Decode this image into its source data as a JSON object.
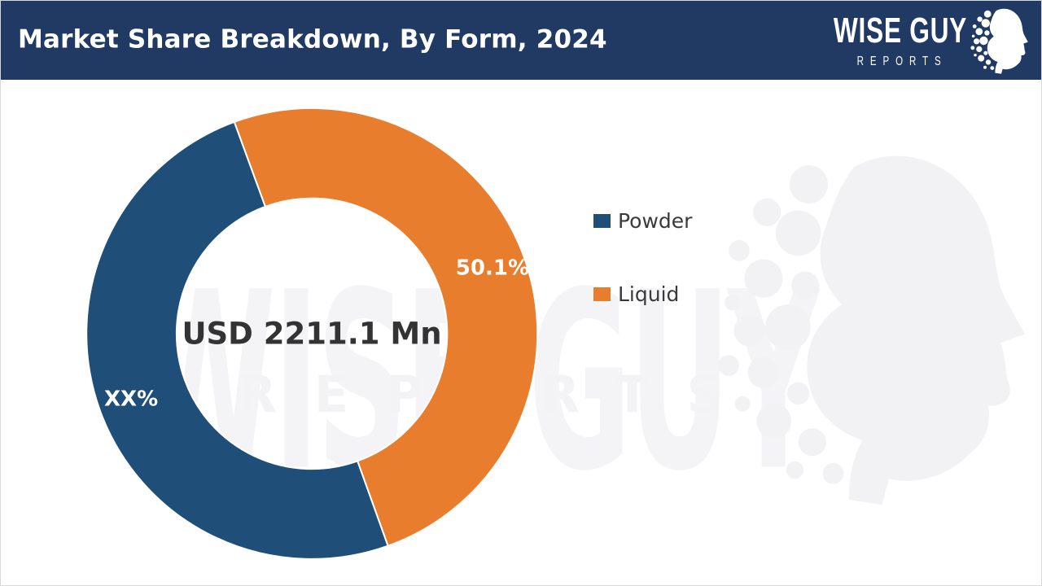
{
  "header": {
    "title": "Market Share Breakdown, By Form, 2024",
    "logo": {
      "line1": "WISE GUY",
      "line2": "REPORTS"
    }
  },
  "watermark": {
    "line1": "WISE GUY",
    "line2": "REPORTS"
  },
  "chart_data": {
    "type": "pie",
    "subtype": "donut",
    "title": "Market Share Breakdown, By Form, 2024",
    "center_label": "USD 2211.1 Mn",
    "start_angle_deg": -20.1,
    "inner_radius_ratio": 0.6,
    "label_position_ratio": 0.852,
    "series": [
      {
        "name": "Liquid",
        "value": 50.1,
        "label": "50.1%",
        "color": "#E87D2E"
      },
      {
        "name": "Powder",
        "value": 49.9,
        "label": "XX%",
        "color": "#1F4E79"
      }
    ],
    "legend": {
      "position": "right",
      "items": [
        {
          "label": "Powder",
          "color": "#1F4E79"
        },
        {
          "label": "Liquid",
          "color": "#E87D2E"
        }
      ]
    },
    "colors": {
      "header_bg": "#203A64",
      "center_text": "#333333",
      "slice_label_text": "#FFFFFF",
      "separator": "#FFFFFF"
    }
  }
}
